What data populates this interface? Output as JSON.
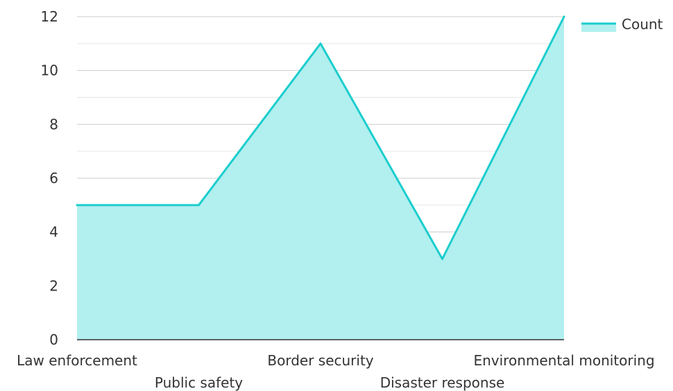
{
  "chart_data": {
    "type": "area",
    "categories": [
      "Law enforcement",
      "Public safety",
      "Border security",
      "Disaster response",
      "Environmental monitoring"
    ],
    "series": [
      {
        "name": "Count",
        "values": [
          5,
          5,
          11,
          3,
          12
        ]
      }
    ],
    "ylim": [
      0,
      12
    ],
    "yticks": [
      0,
      2,
      4,
      6,
      8,
      10,
      12
    ],
    "grid": true,
    "legend_position": "top-right",
    "colors": {
      "line": "#1ccdcd",
      "fill": "#b2efef",
      "grid": "#cccccc",
      "minor_grid": "#e6e6e6",
      "axis": "#333333"
    }
  }
}
